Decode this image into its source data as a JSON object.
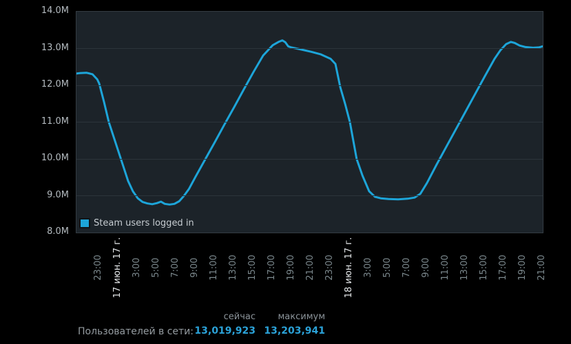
{
  "chart_data": {
    "type": "line",
    "legend": "Steam users logged in",
    "legend_position": "bottom-left-inside",
    "grid": "horizontal-only",
    "ylim": [
      8000000,
      14000000
    ],
    "y_ticks": [
      {
        "value": 14,
        "label": "14.0M"
      },
      {
        "value": 13,
        "label": "13.0M"
      },
      {
        "value": 12,
        "label": "12.0M"
      },
      {
        "value": 11,
        "label": "11.0M"
      },
      {
        "value": 10,
        "label": "10.0M"
      },
      {
        "value": 9,
        "label": "9.0M"
      },
      {
        "value": 8,
        "label": "8.0M"
      }
    ],
    "x_ticks": [
      {
        "offset": 2,
        "label": "23:00",
        "is_date": false
      },
      {
        "offset": 4,
        "label": "17 июн. 17 г.",
        "is_date": true
      },
      {
        "offset": 6,
        "label": "3:00",
        "is_date": false
      },
      {
        "offset": 8,
        "label": "5:00",
        "is_date": false
      },
      {
        "offset": 10,
        "label": "7:00",
        "is_date": false
      },
      {
        "offset": 12,
        "label": "9:00",
        "is_date": false
      },
      {
        "offset": 14,
        "label": "11:00",
        "is_date": false
      },
      {
        "offset": 16,
        "label": "13:00",
        "is_date": false
      },
      {
        "offset": 18,
        "label": "15:00",
        "is_date": false
      },
      {
        "offset": 20,
        "label": "17:00",
        "is_date": false
      },
      {
        "offset": 22,
        "label": "19:00",
        "is_date": false
      },
      {
        "offset": 24,
        "label": "21:00",
        "is_date": false
      },
      {
        "offset": 26,
        "label": "23:00",
        "is_date": false
      },
      {
        "offset": 28,
        "label": "18 июн. 17 г.",
        "is_date": true
      },
      {
        "offset": 30,
        "label": "3:00",
        "is_date": false
      },
      {
        "offset": 32,
        "label": "5:00",
        "is_date": false
      },
      {
        "offset": 34,
        "label": "7:00",
        "is_date": false
      },
      {
        "offset": 36,
        "label": "9:00",
        "is_date": false
      },
      {
        "offset": 38,
        "label": "11:00",
        "is_date": false
      },
      {
        "offset": 40,
        "label": "13:00",
        "is_date": false
      },
      {
        "offset": 42,
        "label": "15:00",
        "is_date": false
      },
      {
        "offset": 44,
        "label": "17:00",
        "is_date": false
      },
      {
        "offset": 46,
        "label": "19:00",
        "is_date": false
      },
      {
        "offset": 48,
        "label": "21:00",
        "is_date": false
      }
    ],
    "series": [
      {
        "name": "Steam users logged in",
        "color": "#1da5d9",
        "unit": "millions of users",
        "points": [
          [
            -0.4,
            12.32
          ],
          [
            0,
            12.33
          ],
          [
            0.7,
            12.34
          ],
          [
            1.3,
            12.3
          ],
          [
            1.8,
            12.16
          ],
          [
            2,
            12.05
          ],
          [
            2.5,
            11.55
          ],
          [
            3,
            11.0
          ],
          [
            4,
            10.2
          ],
          [
            5,
            9.4
          ],
          [
            5.5,
            9.12
          ],
          [
            6,
            8.93
          ],
          [
            6.5,
            8.83
          ],
          [
            7,
            8.79
          ],
          [
            7.5,
            8.77
          ],
          [
            8,
            8.8
          ],
          [
            8.4,
            8.84
          ],
          [
            8.8,
            8.78
          ],
          [
            9.3,
            8.76
          ],
          [
            9.8,
            8.78
          ],
          [
            10.3,
            8.85
          ],
          [
            10.8,
            9.0
          ],
          [
            11.3,
            9.18
          ],
          [
            12,
            9.52
          ],
          [
            13,
            9.99
          ],
          [
            14,
            10.46
          ],
          [
            15,
            10.94
          ],
          [
            16,
            11.41
          ],
          [
            17,
            11.89
          ],
          [
            18,
            12.36
          ],
          [
            19,
            12.81
          ],
          [
            20,
            13.09
          ],
          [
            20.6,
            13.18
          ],
          [
            21,
            13.22
          ],
          [
            21.3,
            13.17
          ],
          [
            21.6,
            13.06
          ],
          [
            21.9,
            13.03
          ],
          [
            22.3,
            13.01
          ],
          [
            23,
            12.97
          ],
          [
            24,
            12.91
          ],
          [
            25,
            12.84
          ],
          [
            26,
            12.72
          ],
          [
            26.5,
            12.58
          ],
          [
            27,
            11.95
          ],
          [
            27.5,
            11.5
          ],
          [
            28,
            11.0
          ],
          [
            28.7,
            10.0
          ],
          [
            29.3,
            9.55
          ],
          [
            30,
            9.12
          ],
          [
            30.6,
            8.97
          ],
          [
            31.2,
            8.93
          ],
          [
            32,
            8.91
          ],
          [
            33,
            8.9
          ],
          [
            34,
            8.92
          ],
          [
            34.7,
            8.95
          ],
          [
            35.3,
            9.05
          ],
          [
            36,
            9.35
          ],
          [
            37,
            9.85
          ],
          [
            38,
            10.33
          ],
          [
            39,
            10.81
          ],
          [
            40,
            11.29
          ],
          [
            41,
            11.77
          ],
          [
            42,
            12.25
          ],
          [
            43,
            12.72
          ],
          [
            43.6,
            12.95
          ],
          [
            44.2,
            13.12
          ],
          [
            44.7,
            13.18
          ],
          [
            45.1,
            13.15
          ],
          [
            45.6,
            13.08
          ],
          [
            46.2,
            13.04
          ],
          [
            47,
            13.02
          ],
          [
            47.6,
            13.03
          ],
          [
            48,
            13.06
          ]
        ]
      }
    ]
  },
  "stats": {
    "now_header": "сейчас",
    "max_header": "максимум",
    "row_label": "Пользователей в сети:",
    "now_value": "13,019,923",
    "max_value": "13,203,941"
  },
  "colors": {
    "background": "#000000",
    "plot_background": "#1c2329",
    "gridline": "#2c343b",
    "line_accent": "#1da5d9",
    "value_text": "#2ba2d8",
    "date_label": "#e4e7e9",
    "time_label": "#7c898e"
  }
}
